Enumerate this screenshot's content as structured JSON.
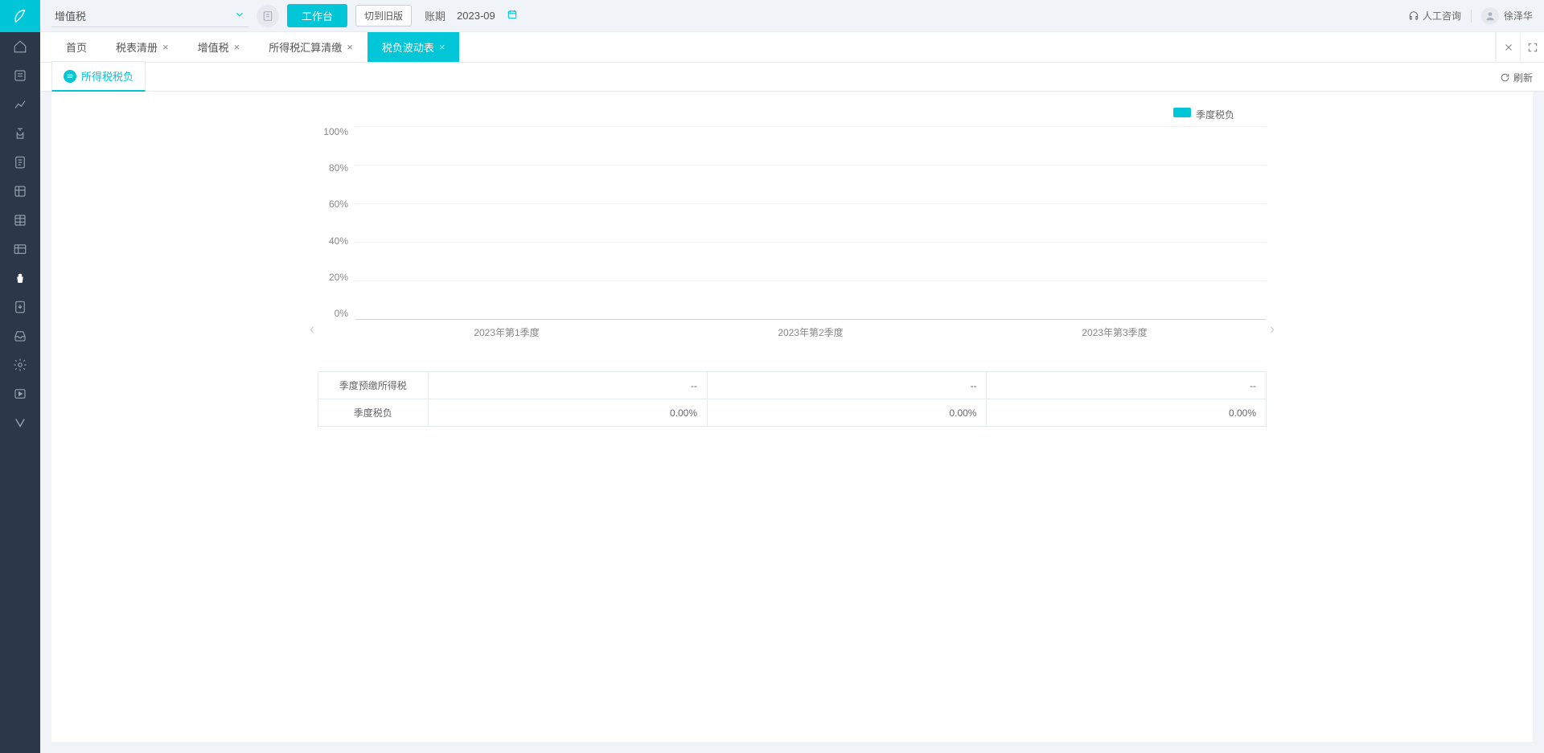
{
  "topbar": {
    "company": "增值税",
    "workbench_label": "工作台",
    "switch_old_label": "切到旧版",
    "period_label": "账期",
    "period_value": "2023-09",
    "support_label": "人工咨询",
    "user_name": "徐泽华"
  },
  "tabs": [
    {
      "label": "首页",
      "closable": false
    },
    {
      "label": "税表清册",
      "closable": true
    },
    {
      "label": "增值税",
      "closable": true
    },
    {
      "label": "所得税汇算清缴",
      "closable": true
    },
    {
      "label": "税负波动表",
      "closable": true,
      "active": true
    }
  ],
  "subtab": {
    "label": "所得税税负"
  },
  "refresh_label": "刷新",
  "chart": {
    "type": "bar",
    "legend_label": "季度税负",
    "legend_color": "#00c6d7",
    "y_ticks": [
      "100%",
      "80%",
      "60%",
      "40%",
      "20%",
      "0%"
    ],
    "y_tick_fontsize": 12,
    "y_tick_color": "#888888",
    "ylim": [
      0,
      100
    ],
    "grid_color": "#f2f4f7",
    "x_labels": [
      "2023年第1季度",
      "2023年第2季度",
      "2023年第3季度"
    ],
    "x_label_fontsize": 12,
    "x_label_color": "#888888",
    "values": [
      0,
      0,
      0
    ],
    "bar_color": "#00c6d7",
    "background_color": "#ffffff"
  },
  "table": {
    "rows": [
      {
        "label": "季度预缴所得税",
        "values": [
          "--",
          "--",
          "--"
        ]
      },
      {
        "label": "季度税负",
        "values": [
          "0.00%",
          "0.00%",
          "0.00%"
        ]
      }
    ],
    "border_color": "#e6eaef",
    "text_color": "#666666"
  },
  "sidebar_items": [
    "home",
    "list",
    "chart",
    "money",
    "doc",
    "form",
    "grid",
    "table",
    "active-cup",
    "download",
    "inbox",
    "gear",
    "play",
    "v"
  ]
}
